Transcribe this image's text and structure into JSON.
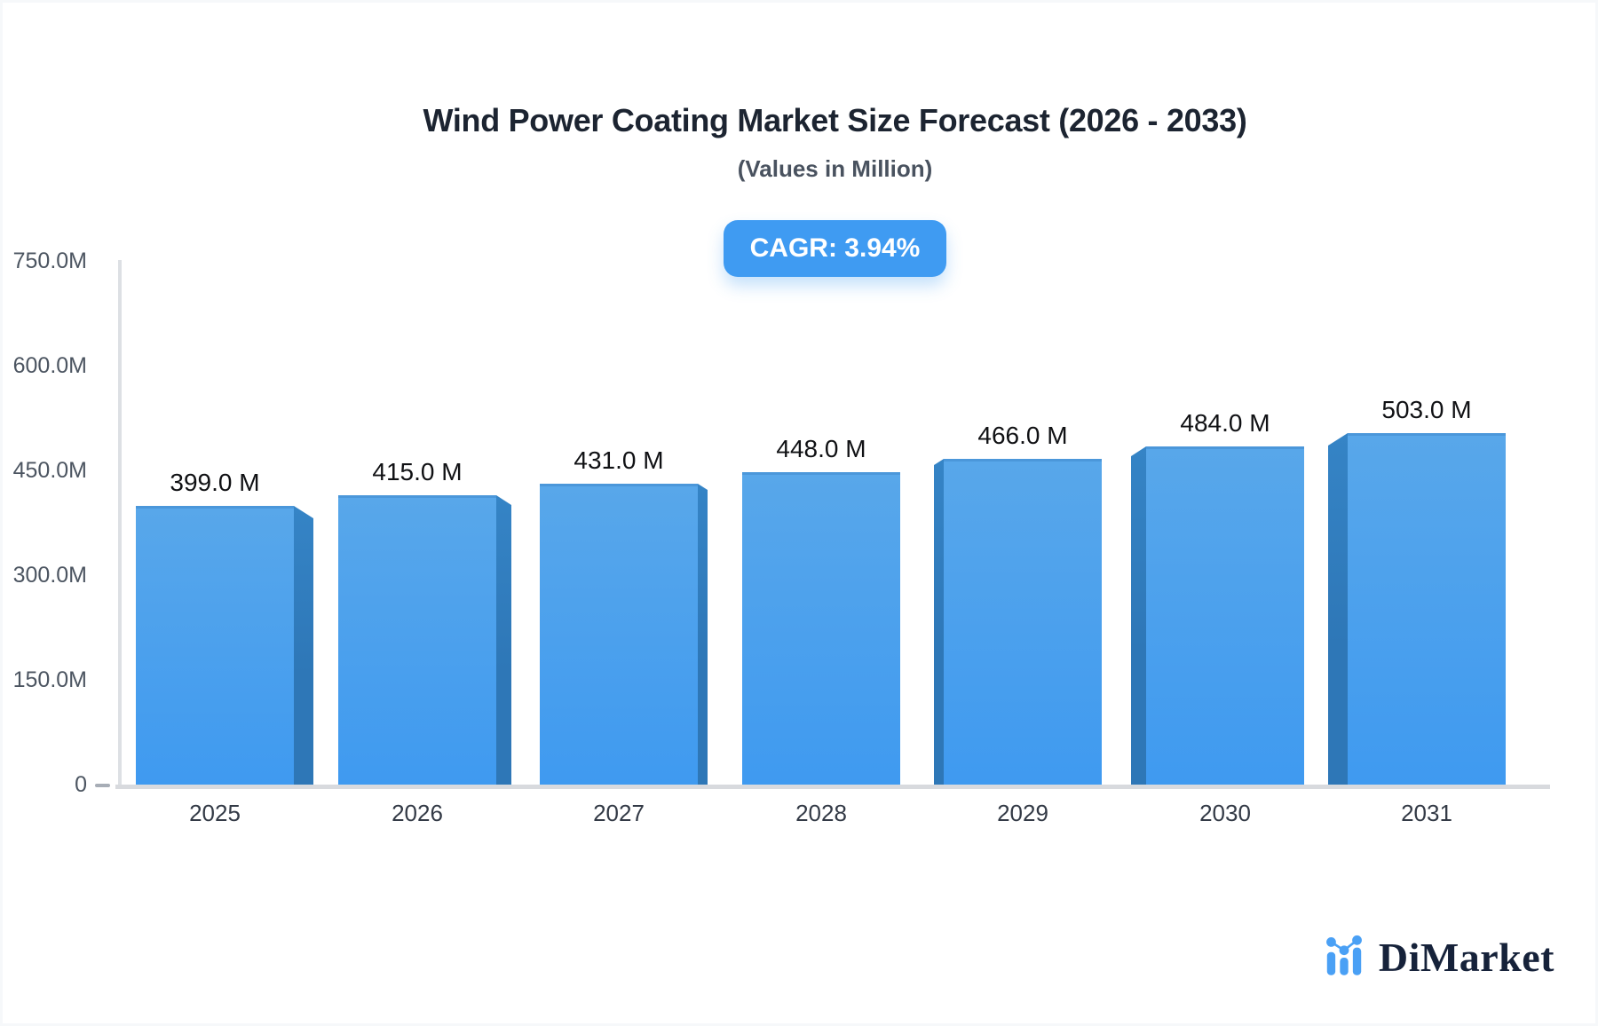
{
  "header": {
    "title": "Wind Power Coating Market Size Forecast (2026 - 2033)",
    "subtitle": "(Values in Million)",
    "cagr_badge": "CAGR: 3.94%"
  },
  "chart_data": {
    "type": "bar",
    "title": "Wind Power Coating Market Size Forecast (2026 - 2033)",
    "subtitle": "(Values in Million)",
    "categories": [
      "2025",
      "2026",
      "2027",
      "2028",
      "2029",
      "2030",
      "2031"
    ],
    "values": [
      399,
      415,
      431,
      448,
      466,
      484,
      503
    ],
    "value_labels": [
      "399.0 M",
      "415.0 M",
      "431.0 M",
      "448.0 M",
      "466.0 M",
      "484.0 M",
      "503.0 M"
    ],
    "unit": "Million",
    "cagr_percent": 3.94,
    "ylim": [
      0,
      750
    ],
    "y_ticks": [
      {
        "label": "0",
        "value": 0
      },
      {
        "label": "150.0M",
        "value": 150
      },
      {
        "label": "300.0M",
        "value": 300
      },
      {
        "label": "450.0M",
        "value": 450
      },
      {
        "label": "600.0M",
        "value": 600
      },
      {
        "label": "750.0M",
        "value": 750
      }
    ],
    "grid": false,
    "legend": false,
    "bar_style": "3d",
    "colors": {
      "bar_top": "#58a7ea",
      "bar_bottom": "#3f9af0",
      "bar_side": "#2e77b7",
      "badge_bg": "#3f9bf2",
      "badge_text": "#ffffff"
    }
  },
  "watermark": {
    "brand": "DiMarket",
    "logo_blue": "#4aa0f5",
    "logo_navy": "#16223a"
  }
}
